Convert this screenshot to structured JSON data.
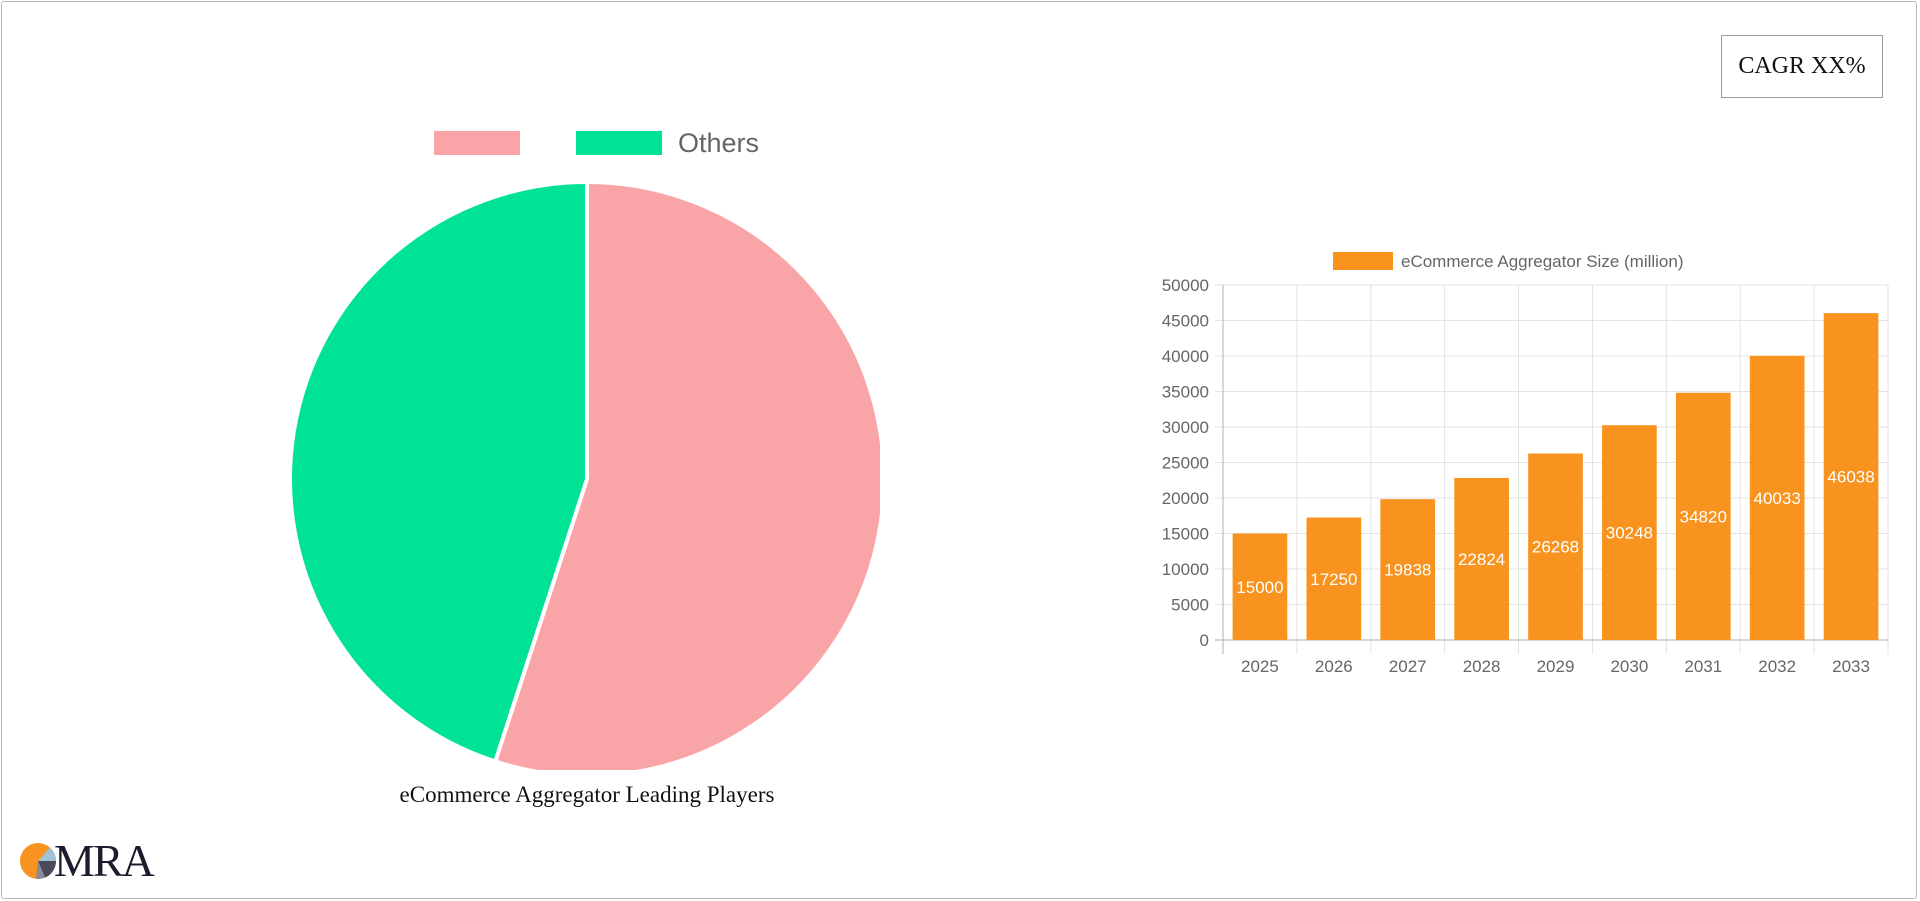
{
  "cagr_label": "CAGR XX%",
  "pie": {
    "caption": "eCommerce Aggregator Leading Players",
    "legend": [
      {
        "label": "",
        "color": "#f9a5a7"
      },
      {
        "label": "Others",
        "color": "#00e394"
      }
    ]
  },
  "logo": {
    "text": "MRA",
    "icon": "mra-pie-logo-icon"
  },
  "chart_data": [
    {
      "type": "pie",
      "labels": [
        "",
        "Others"
      ],
      "values": [
        55,
        45
      ],
      "colors": [
        "#f9a5a7",
        "#00e394"
      ],
      "title": "eCommerce Aggregator Leading Players"
    },
    {
      "type": "bar",
      "categories": [
        "2025",
        "2026",
        "2027",
        "2028",
        "2029",
        "2030",
        "2031",
        "2032",
        "2033"
      ],
      "series": [
        {
          "name": "eCommerce Aggregator Size (million)",
          "values": [
            15000,
            17250,
            19838,
            22824,
            26268,
            30248,
            34820,
            40033,
            46038
          ],
          "color": "#f7931e"
        }
      ],
      "ylim": [
        0,
        50000
      ],
      "yticks": [
        0,
        5000,
        10000,
        15000,
        20000,
        25000,
        30000,
        35000,
        40000,
        45000,
        50000
      ],
      "data_labels": true,
      "grid": true,
      "legend_position": "top"
    }
  ]
}
